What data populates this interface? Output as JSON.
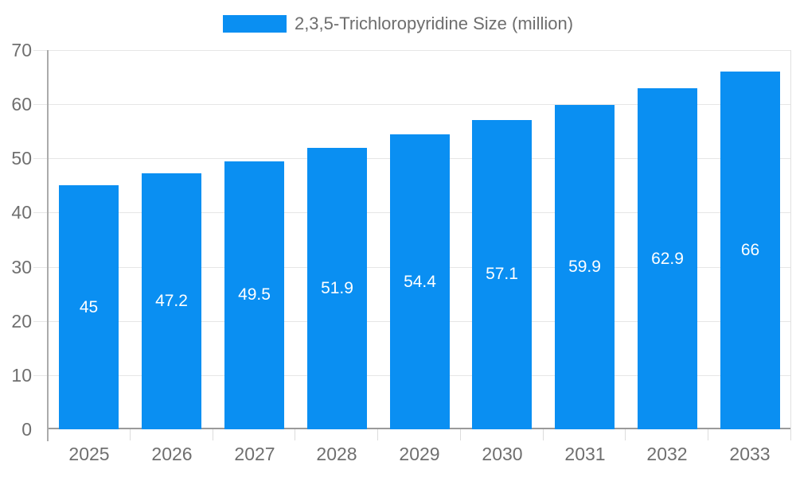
{
  "legend": {
    "label": "2,3,5-Trichloropyridine Size (million)"
  },
  "chart_data": {
    "type": "bar",
    "title": "",
    "categories": [
      "2025",
      "2026",
      "2027",
      "2028",
      "2029",
      "2030",
      "2031",
      "2032",
      "2033"
    ],
    "values": [
      45,
      47.2,
      49.5,
      51.9,
      54.4,
      57.1,
      59.9,
      62.9,
      66
    ],
    "series_name": "2,3,5-Trichloropyridine Size (million)",
    "xlabel": "",
    "ylabel": "",
    "ylim": [
      0,
      70
    ],
    "yticks": [
      0,
      10,
      20,
      30,
      40,
      50,
      60,
      70
    ],
    "grid": true,
    "legend_position": "top-center",
    "value_labels": "inside-center",
    "colors": {
      "bar": "#0a8ff2",
      "value_label": "#ffffff",
      "axis_text": "#6f6f6f",
      "legend_text": "#6e6e6e",
      "gridline": "#e6e6e6",
      "axis_line": "#ababab",
      "baseline": "#9a9a9a"
    }
  }
}
